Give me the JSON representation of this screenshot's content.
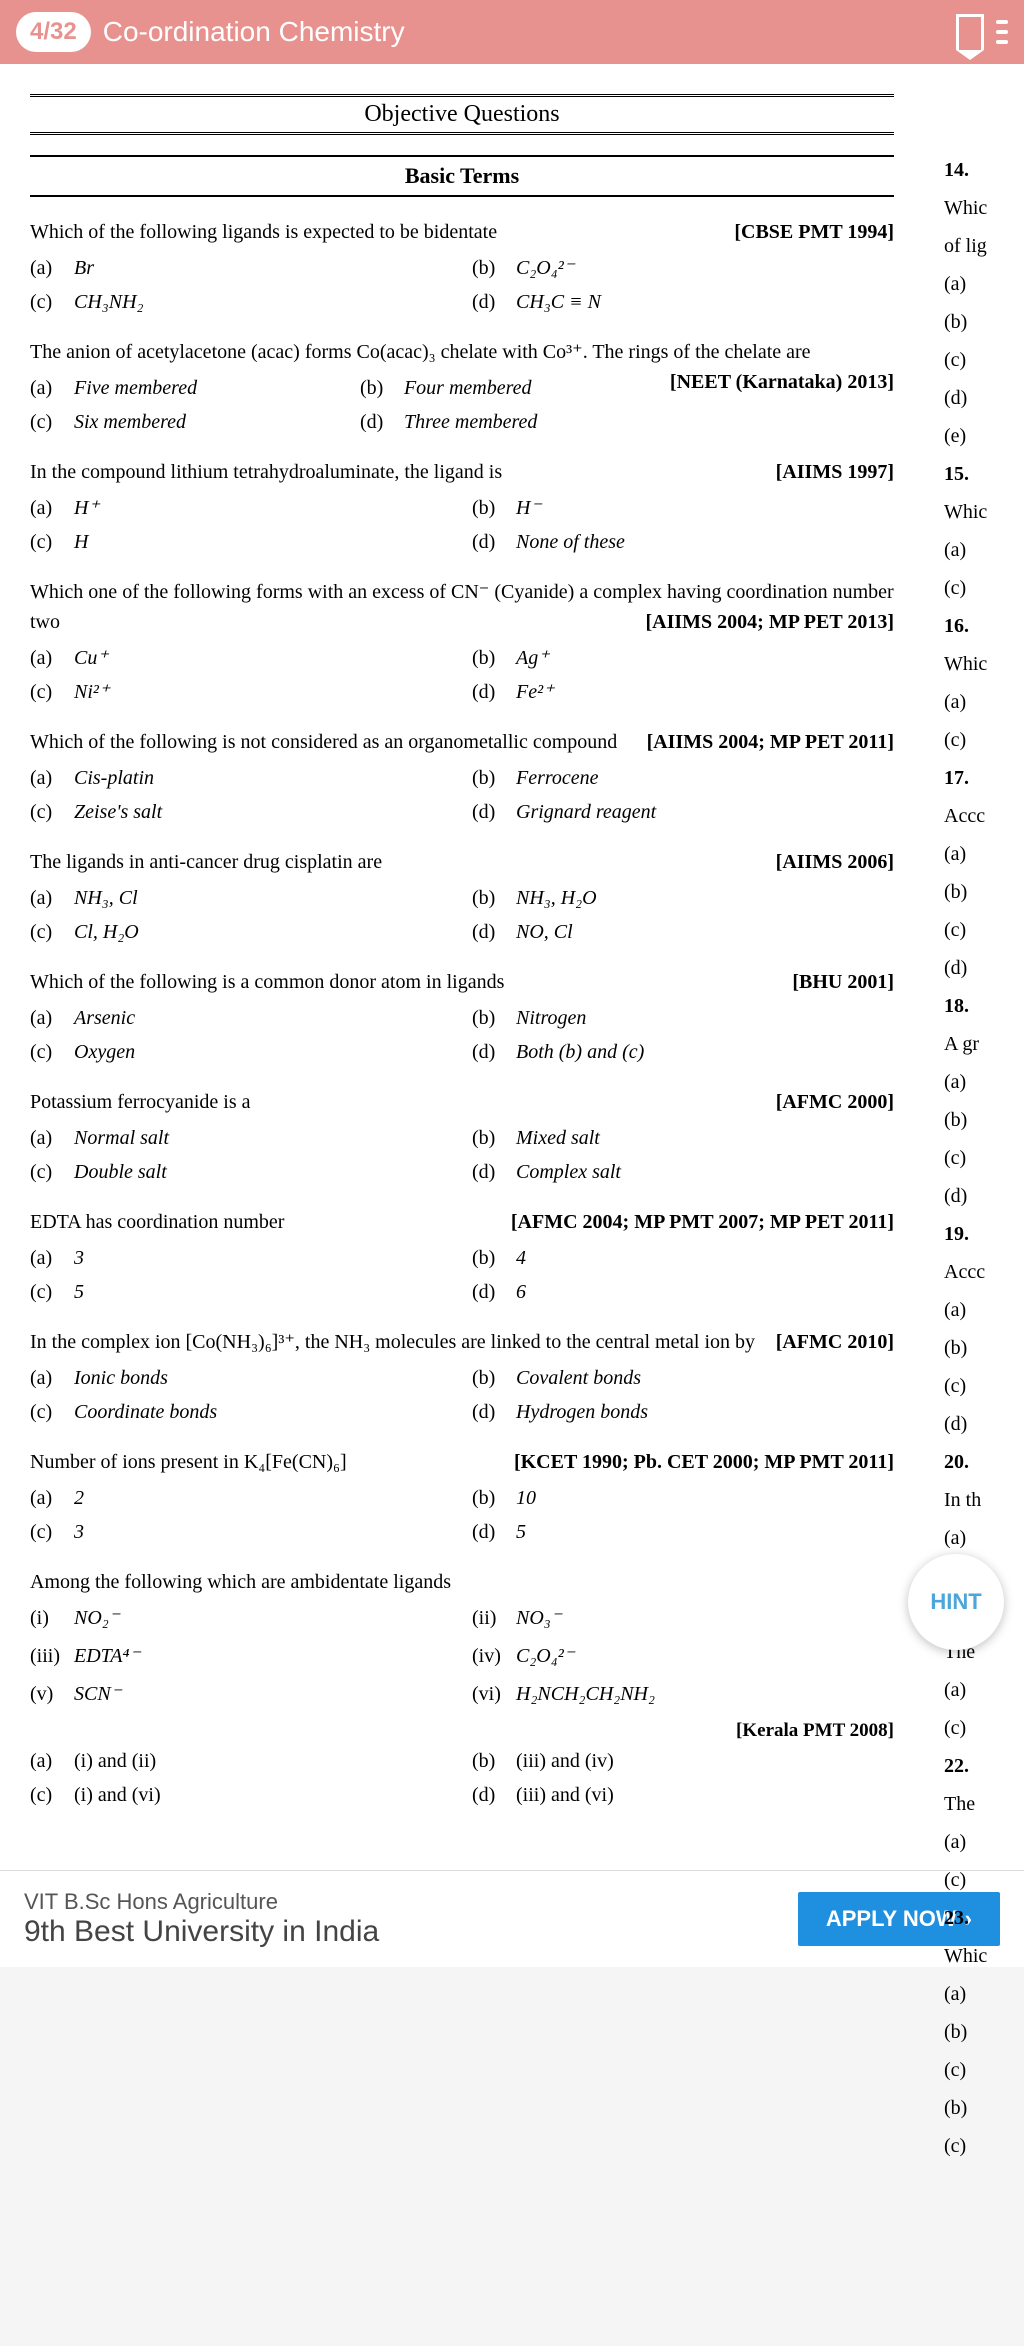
{
  "header": {
    "page_num": "4/32",
    "title": "Co-ordination Chemistry"
  },
  "section_title": "Objective Questions",
  "sub_section": "Basic Terms",
  "questions": [
    {
      "text": "Which of the following ligands is expected to be bidentate",
      "source": "[CBSE PMT 1994]",
      "options": [
        {
          "l": "(a)",
          "t": "Br"
        },
        {
          "l": "(b)",
          "t": "C₂O₄²⁻"
        },
        {
          "l": "(c)",
          "t": "CH₃NH₂"
        },
        {
          "l": "(d)",
          "t": "CH₃C ≡ N"
        }
      ]
    },
    {
      "text": "The anion of acetylacetone (acac) forms Co(acac)₃ chelate with Co³⁺. The rings of the chelate are",
      "source": "[NEET (Karnataka) 2013]",
      "options": [
        {
          "l": "(a)",
          "t": "Five membered"
        },
        {
          "l": "(b)",
          "t": "Four membered"
        },
        {
          "l": "(c)",
          "t": "Six membered"
        },
        {
          "l": "(d)",
          "t": "Three membered"
        }
      ]
    },
    {
      "text": "In the compound lithium tetrahydroaluminate, the ligand is",
      "source": "[AIIMS 1997]",
      "options": [
        {
          "l": "(a)",
          "t": "H⁺"
        },
        {
          "l": "(b)",
          "t": "H⁻"
        },
        {
          "l": "(c)",
          "t": "H"
        },
        {
          "l": "(d)",
          "t": "None of these"
        }
      ]
    },
    {
      "text": "Which one of the following forms with an excess of CN⁻ (Cyanide) a complex having coordination number two",
      "source": "[AIIMS 2004; MP PET 2013]",
      "options": [
        {
          "l": "(a)",
          "t": "Cu⁺"
        },
        {
          "l": "(b)",
          "t": "Ag⁺"
        },
        {
          "l": "(c)",
          "t": "Ni²⁺"
        },
        {
          "l": "(d)",
          "t": "Fe²⁺"
        }
      ]
    },
    {
      "text": "Which of the following is not considered as an organometallic compound",
      "source": "[AIIMS 2004; MP PET 2011]",
      "options": [
        {
          "l": "(a)",
          "t": "Cis-platin"
        },
        {
          "l": "(b)",
          "t": "Ferrocene"
        },
        {
          "l": "(c)",
          "t": "Zeise's salt"
        },
        {
          "l": "(d)",
          "t": "Grignard reagent"
        }
      ]
    },
    {
      "text": "The ligands in anti-cancer drug cisplatin are",
      "source": "[AIIMS 2006]",
      "options": [
        {
          "l": "(a)",
          "t": "NH₃, Cl"
        },
        {
          "l": "(b)",
          "t": "NH₃, H₂O"
        },
        {
          "l": "(c)",
          "t": "Cl, H₂O"
        },
        {
          "l": "(d)",
          "t": "NO, Cl"
        }
      ]
    },
    {
      "text": "Which of the following is a common donor atom in ligands",
      "source": "[BHU 2001]",
      "options": [
        {
          "l": "(a)",
          "t": "Arsenic"
        },
        {
          "l": "(b)",
          "t": "Nitrogen"
        },
        {
          "l": "(c)",
          "t": "Oxygen"
        },
        {
          "l": "(d)",
          "t": "Both (b) and (c)"
        }
      ]
    },
    {
      "text": "Potassium ferrocyanide is a",
      "source": "[AFMC 2000]",
      "options": [
        {
          "l": "(a)",
          "t": "Normal salt"
        },
        {
          "l": "(b)",
          "t": "Mixed salt"
        },
        {
          "l": "(c)",
          "t": "Double salt"
        },
        {
          "l": "(d)",
          "t": "Complex salt"
        }
      ]
    },
    {
      "text": "EDTA has coordination number",
      "source": "[AFMC 2004; MP PMT 2007; MP PET 2011]",
      "options": [
        {
          "l": "(a)",
          "t": "3"
        },
        {
          "l": "(b)",
          "t": "4"
        },
        {
          "l": "(c)",
          "t": "5"
        },
        {
          "l": "(d)",
          "t": "6"
        }
      ]
    },
    {
      "text": "In the complex ion [Co(NH₃)₆]³⁺, the NH₃ molecules are linked to the central metal ion by",
      "source": "[AFMC 2010]",
      "options": [
        {
          "l": "(a)",
          "t": "Ionic bonds"
        },
        {
          "l": "(b)",
          "t": "Covalent bonds"
        },
        {
          "l": "(c)",
          "t": "Coordinate bonds"
        },
        {
          "l": "(d)",
          "t": "Hydrogen bonds"
        }
      ]
    },
    {
      "text": "Number of ions present in K₄[Fe(CN)₆]",
      "source": "[KCET 1990; Pb. CET 2000; MP PMT 2011]",
      "options": [
        {
          "l": "(a)",
          "t": "2"
        },
        {
          "l": "(b)",
          "t": "10"
        },
        {
          "l": "(c)",
          "t": "3"
        },
        {
          "l": "(d)",
          "t": "5"
        }
      ]
    }
  ],
  "ambidentate": {
    "text": "Among the following which are ambidentate ligands",
    "items": [
      {
        "l": "(i)",
        "t": "NO₂⁻"
      },
      {
        "l": "(ii)",
        "t": "NO₃⁻"
      },
      {
        "l": "(iii)",
        "t": "EDTA⁴⁻"
      },
      {
        "l": "(iv)",
        "t": "C₂O₄²⁻"
      },
      {
        "l": "(v)",
        "t": "SCN⁻"
      },
      {
        "l": "(vi)",
        "t": "H₂NCH₂CH₂NH₂"
      }
    ],
    "source": "[Kerala PMT 2008]",
    "options": [
      {
        "l": "(a)",
        "t": "(i) and (ii)"
      },
      {
        "l": "(b)",
        "t": "(iii) and (iv)"
      },
      {
        "l": "(c)",
        "t": "(i) and (vi)"
      },
      {
        "l": "(d)",
        "t": "(iii) and (vi)"
      }
    ]
  },
  "side": [
    "14.",
    "Whic",
    "of lig",
    "(a)",
    "(b)",
    "(c)",
    "(d)",
    "(e)",
    "15.",
    "Whic",
    "(a)",
    "(c)",
    "16.",
    "Whic",
    "(a)",
    "(c)",
    "17.",
    "Accc",
    "(a)",
    "(b)",
    "(c)",
    "(d)",
    "18.",
    "A gr",
    "(a)",
    "(b)",
    "(c)",
    "(d)",
    "19.",
    "Accc",
    "(a)",
    "(b)",
    "(c)",
    "(d)",
    "20.",
    "In th",
    "(a)",
    "(c)",
    "21.",
    "The",
    "(a)",
    "(c)",
    "22.",
    "The",
    "(a)",
    "(c)",
    "23.",
    "Whic",
    "(a)",
    "(b)",
    "(c)",
    "",
    "(b)",
    "(c)"
  ],
  "hint": "HINT",
  "footer": {
    "line1": "VIT B.Sc Hons Agriculture",
    "line2": "9th Best University in India",
    "cta": "APPLY NOW"
  },
  "colors": {
    "header_bg": "#e8928f",
    "cta_bg": "#1f8fe0",
    "hint_text": "#4da6d9"
  }
}
